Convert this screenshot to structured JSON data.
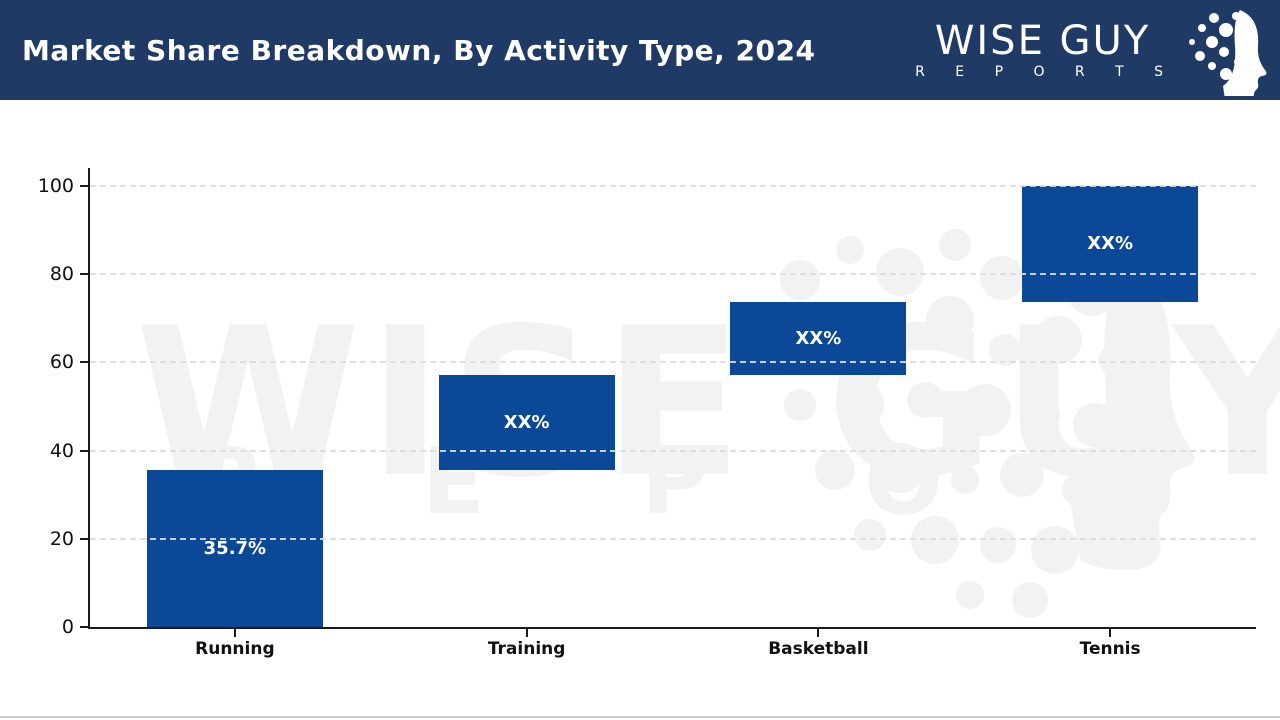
{
  "header": {
    "title": "Market Share Breakdown, By Activity Type, 2024",
    "logo": {
      "line1": "WISE GUY",
      "line2": "R E P O R T S"
    }
  },
  "watermark": {
    "line1": "WISE GUY",
    "line2": "R E P O R T S"
  },
  "chart_data": {
    "type": "bar",
    "subtype": "waterfall",
    "title": "Market Share Breakdown, By Activity Type, 2024",
    "categories": [
      "Running",
      "Training",
      "Basketball",
      "Tennis"
    ],
    "segments": [
      {
        "category": "Running",
        "start": 0,
        "end": 35.7,
        "label": "35.7%"
      },
      {
        "category": "Training",
        "start": 35.7,
        "end": 57.1,
        "label": "XX%"
      },
      {
        "category": "Basketball",
        "start": 57.1,
        "end": 73.8,
        "label": "XX%"
      },
      {
        "category": "Tennis",
        "start": 73.8,
        "end": 100,
        "label": "XX%"
      }
    ],
    "xlabel": "",
    "ylabel": "",
    "ylim": [
      0,
      100
    ],
    "yticks": [
      0,
      20,
      40,
      60,
      80,
      100
    ],
    "grid": "horizontal-dashed",
    "legend": "none",
    "bar_color": "#0b4898",
    "bar_label_color": "#ffffff"
  },
  "colors": {
    "header_bg": "#203a66",
    "bar": "#0b4898",
    "axis": "#1a1a1a",
    "grid": "#dcdcdc",
    "watermark": "#f2f2f2"
  }
}
